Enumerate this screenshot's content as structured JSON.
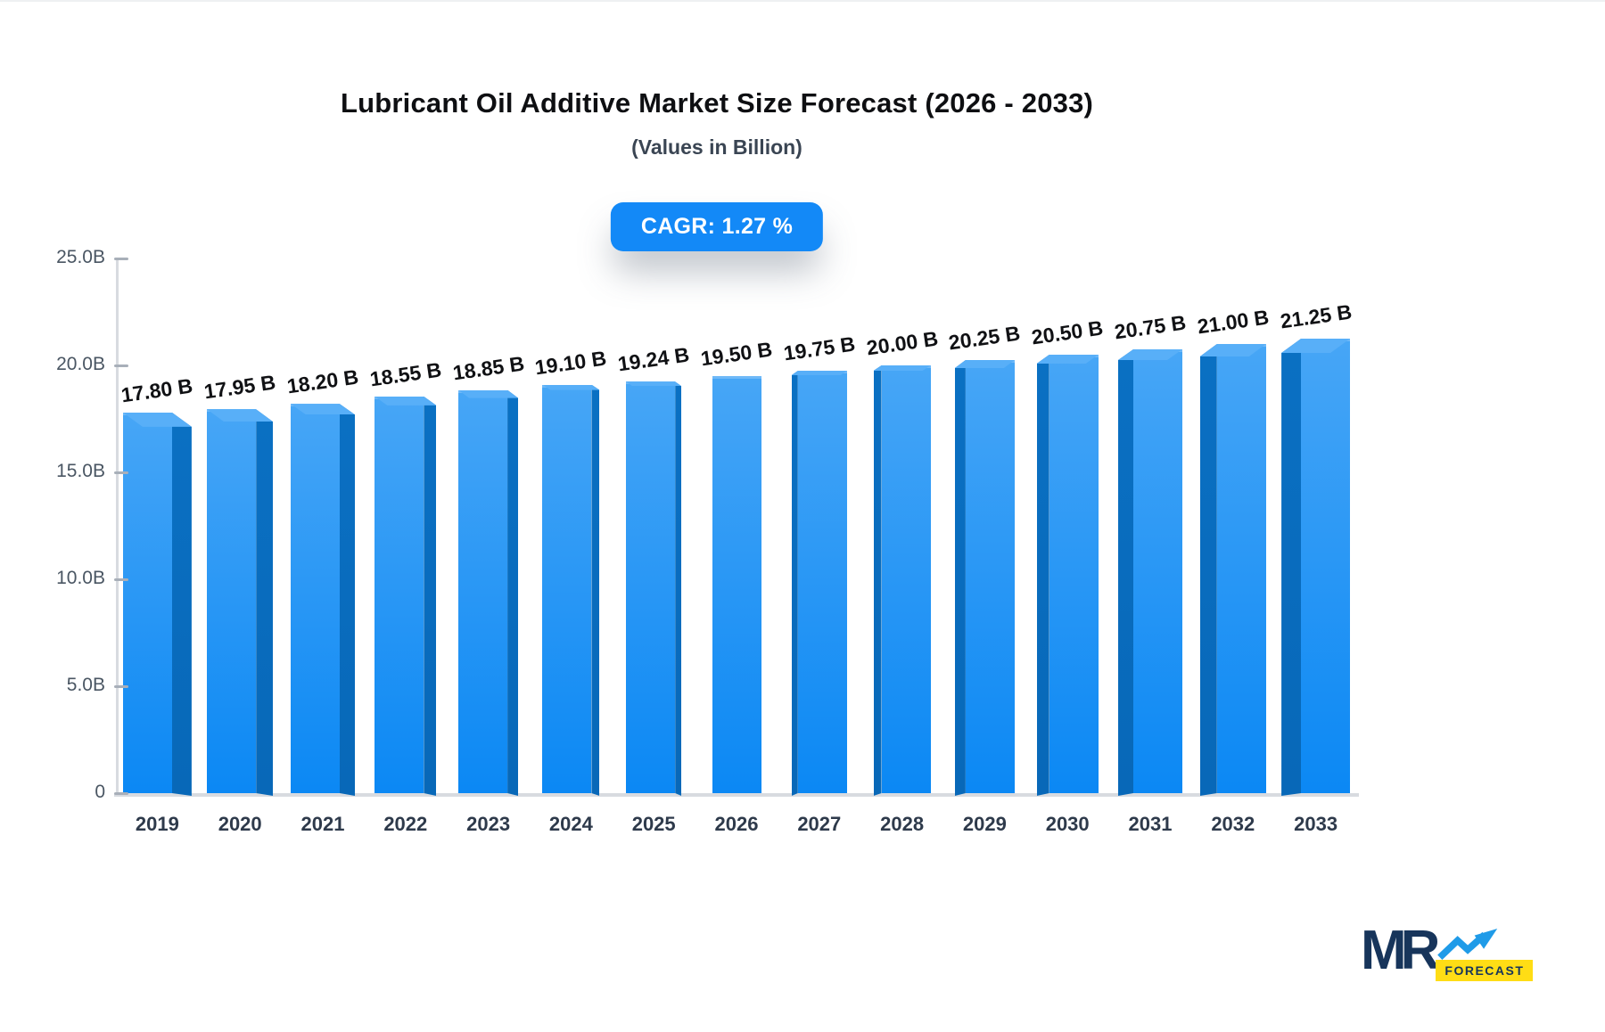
{
  "title": "Lubricant Oil Additive Market Size Forecast (2026 - 2033)",
  "subtitle": "(Values in Billion)",
  "badge": {
    "label": "CAGR: 1.27 %"
  },
  "chart_data": {
    "type": "bar",
    "title": "Lubricant Oil Additive Market Size Forecast (2026 - 2033)",
    "subtitle": "(Values in Billion)",
    "xlabel": "",
    "ylabel": "",
    "ylim": [
      0,
      25
    ],
    "grid": false,
    "legend": false,
    "categories": [
      "2019",
      "2020",
      "2021",
      "2022",
      "2023",
      "2024",
      "2025",
      "2026",
      "2027",
      "2028",
      "2029",
      "2030",
      "2031",
      "2032",
      "2033"
    ],
    "values": [
      17.8,
      17.95,
      18.2,
      18.55,
      18.85,
      19.1,
      19.24,
      19.5,
      19.75,
      20.0,
      20.25,
      20.5,
      20.75,
      21.0,
      21.25
    ],
    "value_labels": [
      "17.80 B",
      "17.95 B",
      "18.20 B",
      "18.55 B",
      "18.85 B",
      "19.10 B",
      "19.24 B",
      "19.50 B",
      "19.75 B",
      "20.00 B",
      "20.25 B",
      "20.50 B",
      "20.75 B",
      "21.00 B",
      "21.25 B"
    ],
    "yticks": [
      {
        "label": "25.0B",
        "value": 25
      },
      {
        "label": "20.0B",
        "value": 20
      },
      {
        "label": "15.0B",
        "value": 15
      },
      {
        "label": "10.0B",
        "value": 10
      },
      {
        "label": "5.0B",
        "value": 5
      },
      {
        "label": "0",
        "value": 0
      }
    ]
  },
  "colors": {
    "bar_face_top": "#47a6f6",
    "bar_face_bottom": "#0b88f4",
    "bar_side": "#0a70c3",
    "bar_side_dark": "#0868b8",
    "bar_top_face": "#58aff8",
    "badge_bg": "#1389f7",
    "axis_line": "#d8dbe0",
    "tick_text": "#4a5663",
    "logo_navy": "#17355b",
    "logo_arrow_blue": "#1f9be8",
    "logo_yellow": "#ffdd15"
  },
  "logo": {
    "mr": "MR",
    "forecast": "FORECAST"
  }
}
